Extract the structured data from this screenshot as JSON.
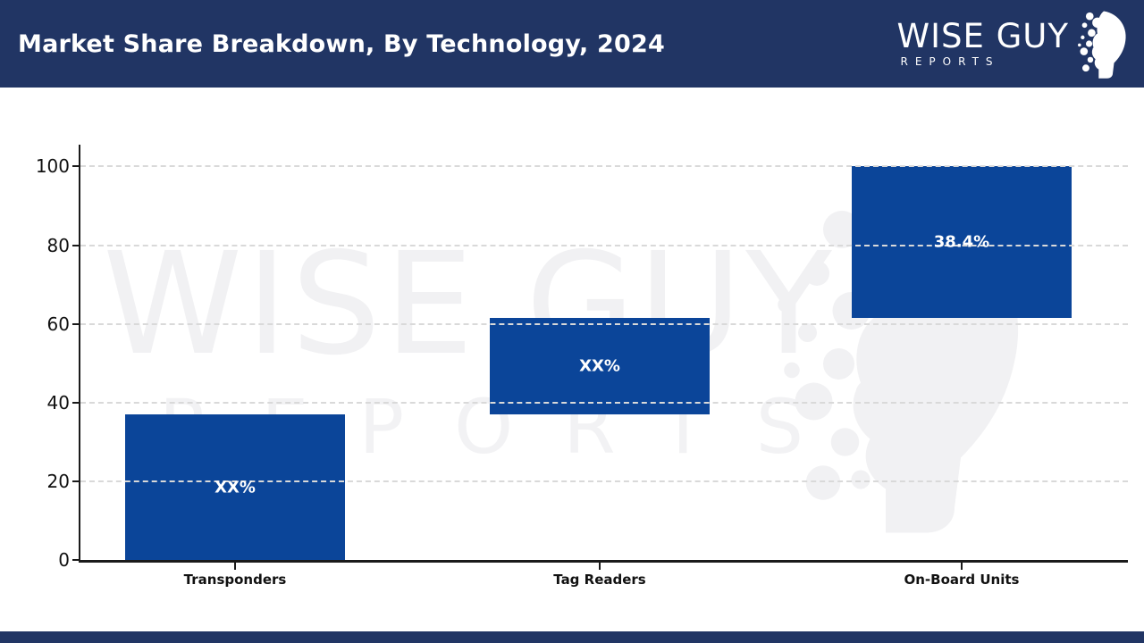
{
  "header": {
    "title": "Market Share Breakdown, By Technology, 2024",
    "logo": {
      "line1": "WISE GUY",
      "line2": "REPORTS"
    }
  },
  "watermark": {
    "line1": "WISE GUY",
    "line2": "REPORTS"
  },
  "chart_data": {
    "type": "bar",
    "subtype": "floating-waterfall",
    "title": "Market Share Breakdown, By Technology, 2024",
    "categories": [
      "Transponders",
      "Tag Readers",
      "On-Board Units"
    ],
    "bars": [
      {
        "category": "Transponders",
        "start": 0,
        "end": 36.9,
        "value_label": "XX%"
      },
      {
        "category": "Tag Readers",
        "start": 36.9,
        "end": 61.6,
        "value_label": "XX%"
      },
      {
        "category": "On-Board Units",
        "start": 61.6,
        "end": 100,
        "value_label": "38.4%"
      }
    ],
    "yticks": [
      0,
      20,
      40,
      60,
      80,
      100
    ],
    "ylim": [
      0,
      105.5
    ],
    "grid": "horizontal-dashed",
    "legend": "none",
    "bar_color": "#0b4599",
    "bar_label_color": "#ffffff"
  },
  "colors": {
    "header_bg": "#213564",
    "footer_bg": "#213564",
    "bar": "#0b4599",
    "grid": "#d9d9d9",
    "axis": "#1a1a1a",
    "watermark": "#f1f1f3"
  }
}
